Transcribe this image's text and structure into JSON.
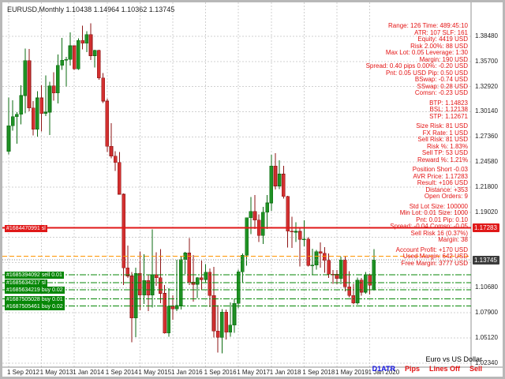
{
  "header": {
    "symbol": "EURUSD,Monthly",
    "open": "1.10438",
    "high": "1.14964",
    "low": "1.10362",
    "close": "1.13745"
  },
  "info_panel": {
    "color": "#e41414",
    "blocks": [
      [
        "Range: 126 Time: 489:45:10",
        "ATR: 107 SLF: 161",
        "Equity: 4419 USD",
        "Risk 2.00%: 88 USD",
        "Max Lot: 0.05 Leverage: 1:30",
        "Margin: 190 USD",
        "Spread: 0.40 pips 0.00%: -0.20 USD",
        "Pnt: 0.05 USD Pip: 0.50 USD",
        "BSwap: -0.74 USD",
        "SSwap: 0.28 USD",
        "Comsn: -0.23 USD"
      ],
      [
        "BTP: 1.14823",
        "BSL: 1.12138",
        "STP: 1.12671"
      ],
      [
        "Size Risk: 81 USD",
        "FX Rate: 1 USD",
        "Sell Risk: 81 USD",
        "Risk %: 1.83%",
        "Sell TP: 53 USD",
        "Reward %: 1.21%"
      ],
      [
        "Position Short -0.03",
        "AVR Price: 1.17283",
        "Result: +106 USD",
        "Distance: +353",
        "Open Orders: 9"
      ],
      [
        "Std Lot Size: 100000",
        "Min Lot: 0.01 Size: 1000",
        "Pnt: 0.01 Pip: 0.10",
        "Spread: -0.04 Comsn: -0.05",
        "Sell Risk 16 (0.37%)",
        "Margin: 38"
      ],
      [
        "Account Profit: +170 USD",
        "Used Margin: 642 USD",
        "Free Margin: 3777 USD"
      ]
    ]
  },
  "price_axis": {
    "labels": [
      "1.38480",
      "1.35700",
      "1.32920",
      "1.30140",
      "1.27360",
      "1.24580",
      "1.21800",
      "1.19020",
      "1.16240",
      "1.13460",
      "1.10680",
      "1.07900",
      "1.05120",
      "1.02340"
    ],
    "highlighted": [
      {
        "value": "1.17283",
        "bg": "#e01818",
        "fg": "#ffffff"
      },
      {
        "value": "1.13745",
        "bg": "#3c3c3c",
        "fg": "#ffffff"
      }
    ]
  },
  "time_axis": {
    "labels": [
      {
        "text": "1 Sep 2012",
        "index": 0
      },
      {
        "text": "1 May 2013",
        "index": 8
      },
      {
        "text": "1 Jan 2014",
        "index": 16
      },
      {
        "text": "1 Sep 2014",
        "index": 24
      },
      {
        "text": "1 May 2015",
        "index": 32
      },
      {
        "text": "1 Jan 2016",
        "index": 40
      },
      {
        "text": "1 Sep 2016",
        "index": 48
      },
      {
        "text": "1 May 2017",
        "index": 56
      },
      {
        "text": "1 Jan 2018",
        "index": 64
      },
      {
        "text": "1 Sep 2018",
        "index": 72
      },
      {
        "text": "1 May 2019",
        "index": 80
      },
      {
        "text": "1 Jan 2020",
        "index": 88
      }
    ]
  },
  "order_lines": [
    {
      "label": "#1684470991 sl",
      "price": 1.17283,
      "color": "#e01818",
      "style": "solid",
      "width": 2
    },
    {
      "label": "",
      "price": 1.1415,
      "color": "#ff9500",
      "style": "dashed",
      "width": 1
    },
    {
      "label": "#1685394092 sell 0.01",
      "price": 1.121,
      "color": "#078707",
      "style": "dashdot",
      "width": 1
    },
    {
      "label": "#1685634217 sl",
      "price": 1.1124,
      "color": "#078707",
      "style": "dashdot",
      "width": 1
    },
    {
      "label": "#1685634219 buy 0.02",
      "price": 1.1046,
      "color": "#078707",
      "style": "dashdot",
      "width": 1
    },
    {
      "label": "#1687505028 buy 0.01",
      "price": 1.0943,
      "color": "#078707",
      "style": "dashdot",
      "width": 1
    },
    {
      "label": "#1687505461 buy 0.02",
      "price": 1.0865,
      "color": "#078707",
      "style": "dashdot",
      "width": 1
    }
  ],
  "current_price_line": {
    "price": 1.13745,
    "color": "#888888",
    "style": "dotted"
  },
  "ea_panel": {
    "description": "Euro vs US Dollar",
    "buttons": [
      {
        "label": "D1ATR",
        "color": "#1414e4"
      },
      {
        "label": "Pips",
        "color": "#e41414"
      },
      {
        "label": "Lines Off",
        "color": "#e41414"
      },
      {
        "label": "Sell",
        "color": "#e41414"
      }
    ]
  },
  "chart_data": {
    "type": "candlestick",
    "symbol": "EURUSD",
    "timeframe": "Monthly",
    "title": "EURUSD,Monthly 1.10438 1.14964 1.10362 1.13745",
    "ylim": [
      1.0234,
      1.3995
    ],
    "grid": true,
    "colors": {
      "bull": "#1f9124",
      "bull_edge": "#0b6b10",
      "bear": "#d23030",
      "bear_edge": "#8e1616",
      "grid": "#d0d0d0"
    },
    "candles": [
      [
        1.2576,
        1.3172,
        1.2542,
        1.286
      ],
      [
        1.286,
        1.3139,
        1.2803,
        1.296
      ],
      [
        1.296,
        1.3009,
        1.2661,
        1.2985
      ],
      [
        1.2985,
        1.3308,
        1.2876,
        1.3193
      ],
      [
        1.3193,
        1.3711,
        1.2998,
        1.3579
      ],
      [
        1.3579,
        1.371,
        1.3018,
        1.3057
      ],
      [
        1.3057,
        1.3134,
        1.275,
        1.2819
      ],
      [
        1.2819,
        1.3243,
        1.274,
        1.3167
      ],
      [
        1.3167,
        1.3306,
        1.2796,
        1.2996
      ],
      [
        1.2996,
        1.3415,
        1.2965,
        1.301
      ],
      [
        1.301,
        1.3345,
        1.2755,
        1.33
      ],
      [
        1.33,
        1.3452,
        1.3135,
        1.3222
      ],
      [
        1.3222,
        1.3645,
        1.3105,
        1.3527
      ],
      [
        1.3527,
        1.3832,
        1.3475,
        1.3585
      ],
      [
        1.3585,
        1.3622,
        1.3295,
        1.3591
      ],
      [
        1.3591,
        1.3893,
        1.3525,
        1.3743
      ],
      [
        1.3743,
        1.3746,
        1.3477,
        1.3486
      ],
      [
        1.3486,
        1.3824,
        1.3475,
        1.3802
      ],
      [
        1.3802,
        1.3967,
        1.3704,
        1.3771
      ],
      [
        1.3771,
        1.3905,
        1.3672,
        1.3866
      ],
      [
        1.3866,
        1.3993,
        1.3585,
        1.3634
      ],
      [
        1.3634,
        1.3699,
        1.3502,
        1.3692
      ],
      [
        1.3692,
        1.3701,
        1.3366,
        1.3388
      ],
      [
        1.3388,
        1.3444,
        1.311,
        1.3132
      ],
      [
        1.3132,
        1.316,
        1.257,
        1.2632
      ],
      [
        1.2632,
        1.2886,
        1.25,
        1.2524
      ],
      [
        1.2524,
        1.2577,
        1.2357,
        1.2452
      ],
      [
        1.2452,
        1.257,
        1.2095,
        1.2101
      ],
      [
        1.2101,
        1.2108,
        1.1098,
        1.1288
      ],
      [
        1.1288,
        1.1534,
        1.1175,
        1.1197
      ],
      [
        1.1197,
        1.1241,
        1.0462,
        1.0731
      ],
      [
        1.0731,
        1.129,
        1.0519,
        1.1224
      ],
      [
        1.1224,
        1.1467,
        1.0819,
        1.0986
      ],
      [
        1.0986,
        1.1436,
        1.0887,
        1.1147
      ],
      [
        1.1147,
        1.1216,
        1.0808,
        1.0984
      ],
      [
        1.0984,
        1.1713,
        1.0847,
        1.1211
      ],
      [
        1.1211,
        1.146,
        1.1087,
        1.1177
      ],
      [
        1.1177,
        1.1495,
        1.0897,
        1.1005
      ],
      [
        1.1005,
        1.1095,
        1.0558,
        1.0565
      ],
      [
        1.0565,
        1.106,
        1.0524,
        1.0862
      ],
      [
        1.0862,
        1.0985,
        1.0711,
        1.0832
      ],
      [
        1.0832,
        1.1376,
        1.0809,
        1.0873
      ],
      [
        1.0873,
        1.1412,
        1.0825,
        1.138
      ],
      [
        1.138,
        1.1465,
        1.1217,
        1.1451
      ],
      [
        1.1451,
        1.1616,
        1.1097,
        1.1131
      ],
      [
        1.1131,
        1.1428,
        1.0912,
        1.1106
      ],
      [
        1.1106,
        1.1186,
        1.0952,
        1.1176
      ],
      [
        1.1176,
        1.1366,
        1.1046,
        1.1158
      ],
      [
        1.1158,
        1.1327,
        1.1123,
        1.1238
      ],
      [
        1.1238,
        1.1279,
        1.0851,
        1.0981
      ],
      [
        1.0981,
        1.1299,
        1.0518,
        1.0587
      ],
      [
        1.0587,
        1.0873,
        1.0352,
        1.0517
      ],
      [
        1.0517,
        1.0829,
        1.0341,
        1.0798
      ],
      [
        1.0798,
        1.0828,
        1.0493,
        1.0576
      ],
      [
        1.0576,
        1.0905,
        1.0525,
        1.0652
      ],
      [
        1.0652,
        1.095,
        1.0569,
        1.0895
      ],
      [
        1.0895,
        1.1267,
        1.0839,
        1.1244
      ],
      [
        1.1244,
        1.1445,
        1.1119,
        1.1426
      ],
      [
        1.1426,
        1.1845,
        1.1312,
        1.1842
      ],
      [
        1.1842,
        1.2069,
        1.1662,
        1.191
      ],
      [
        1.191,
        1.2092,
        1.1717,
        1.1814
      ],
      [
        1.1814,
        1.188,
        1.1574,
        1.1646
      ],
      [
        1.1646,
        1.1961,
        1.1553,
        1.1904
      ],
      [
        1.1904,
        1.2092,
        1.1718,
        1.2005
      ],
      [
        1.2005,
        1.2537,
        1.1916,
        1.2415
      ],
      [
        1.2415,
        1.2556,
        1.2154,
        1.2193
      ],
      [
        1.2193,
        1.2476,
        1.2157,
        1.2324
      ],
      [
        1.2324,
        1.2414,
        1.2055,
        1.2079
      ],
      [
        1.2079,
        1.2084,
        1.151,
        1.1693
      ],
      [
        1.1693,
        1.1853,
        1.1508,
        1.1684
      ],
      [
        1.1684,
        1.1791,
        1.1575,
        1.1691
      ],
      [
        1.1691,
        1.1733,
        1.1301,
        1.1601
      ],
      [
        1.1601,
        1.1815,
        1.1526,
        1.1604
      ],
      [
        1.1604,
        1.1625,
        1.1302,
        1.1312
      ],
      [
        1.1312,
        1.15,
        1.1216,
        1.1317
      ],
      [
        1.1317,
        1.1486,
        1.1268,
        1.1467
      ],
      [
        1.1467,
        1.157,
        1.1289,
        1.1448
      ],
      [
        1.1448,
        1.1514,
        1.1234,
        1.1371
      ],
      [
        1.1371,
        1.1448,
        1.1176,
        1.1218
      ],
      [
        1.1218,
        1.1262,
        1.1111,
        1.1215
      ],
      [
        1.1215,
        1.1264,
        1.1107,
        1.1168
      ],
      [
        1.1168,
        1.1412,
        1.1107,
        1.1373
      ],
      [
        1.1373,
        1.1412,
        1.1027,
        1.1077
      ],
      [
        1.1077,
        1.1249,
        1.0963,
        1.0981
      ],
      [
        1.0981,
        1.1109,
        1.0885,
        1.0899
      ],
      [
        1.0899,
        1.1179,
        1.0879,
        1.1152
      ],
      [
        1.1152,
        1.1175,
        1.0981,
        1.1018
      ],
      [
        1.1018,
        1.1239,
        1.1003,
        1.1213
      ],
      [
        1.1213,
        1.1225,
        1.0992,
        1.1093
      ],
      [
        1.10438,
        1.14964,
        1.10362,
        1.13745
      ]
    ]
  }
}
